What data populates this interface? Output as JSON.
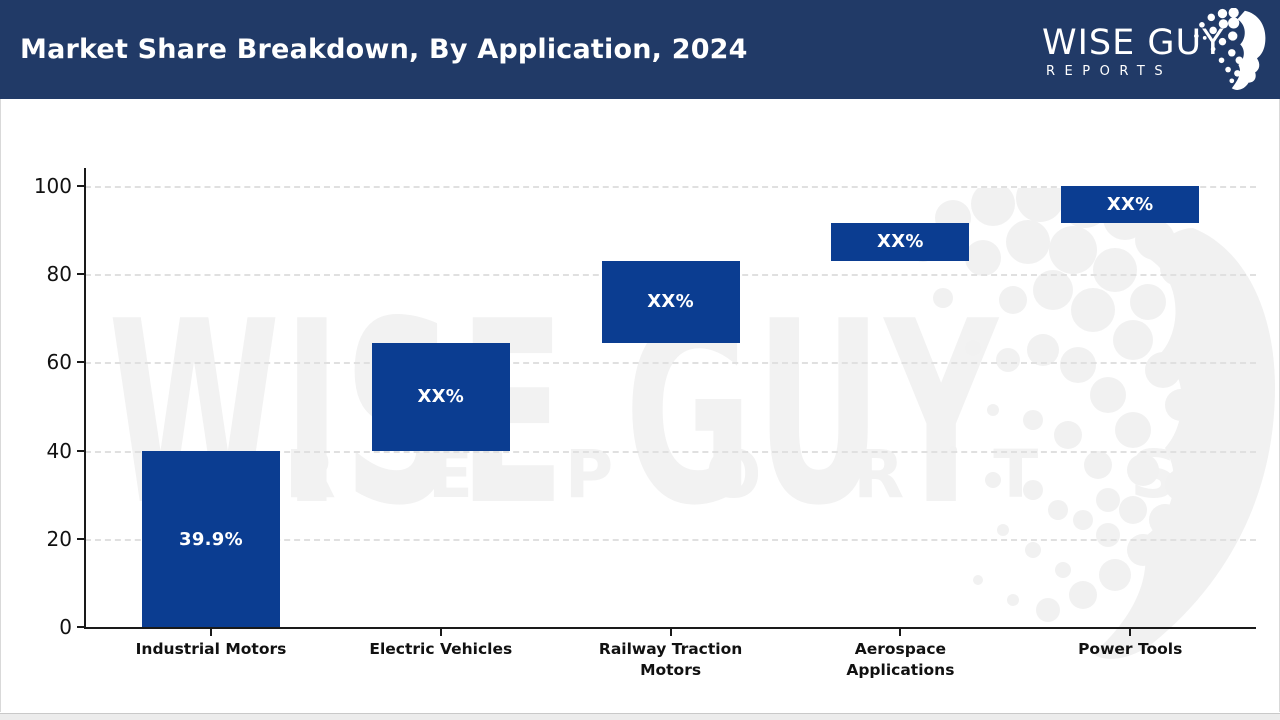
{
  "header": {
    "title": "Market Share Breakdown, By Application, 2024",
    "bg_color": "#213a67",
    "logo": {
      "line1": "WISE GUY",
      "line2": "REPORTS"
    }
  },
  "watermark": {
    "line1": "WISE GUY",
    "line2": "REPORTS"
  },
  "footer": {
    "bg_color": "#ececec"
  },
  "chart_data": {
    "type": "bar",
    "subtype": "floating-waterfall",
    "title": "Market Share Breakdown, By Application, 2024",
    "categories": [
      "Industrial Motors",
      "Electric Vehicles",
      "Railway Traction Motors",
      "Aerospace Applications",
      "Power Tools"
    ],
    "category_label_lines": [
      [
        "Industrial Motors"
      ],
      [
        "Electric Vehicles"
      ],
      [
        "Railway Traction",
        "Motors"
      ],
      [
        "Aerospace",
        "Applications"
      ],
      [
        "Power Tools"
      ]
    ],
    "segments": [
      {
        "category": "Industrial Motors",
        "start": 0,
        "end": 39.9,
        "label": "39.9%"
      },
      {
        "category": "Electric Vehicles",
        "start": 40,
        "end": 64.5,
        "label": "XX%"
      },
      {
        "category": "Railway Traction Motors",
        "start": 64.5,
        "end": 83,
        "label": "XX%"
      },
      {
        "category": "Aerospace Applications",
        "start": 83,
        "end": 91.6,
        "label": "XX%"
      },
      {
        "category": "Power Tools",
        "start": 91.6,
        "end": 100,
        "label": "XX%"
      }
    ],
    "xlabel": "",
    "ylabel": "",
    "ylim": [
      0,
      100
    ],
    "yticks": [
      0,
      20,
      40,
      60,
      80,
      100
    ],
    "grid": "horizontal-dashed",
    "legend": "none",
    "bar_color": "#0b3d91",
    "bar_label_color": "#ffffff"
  }
}
